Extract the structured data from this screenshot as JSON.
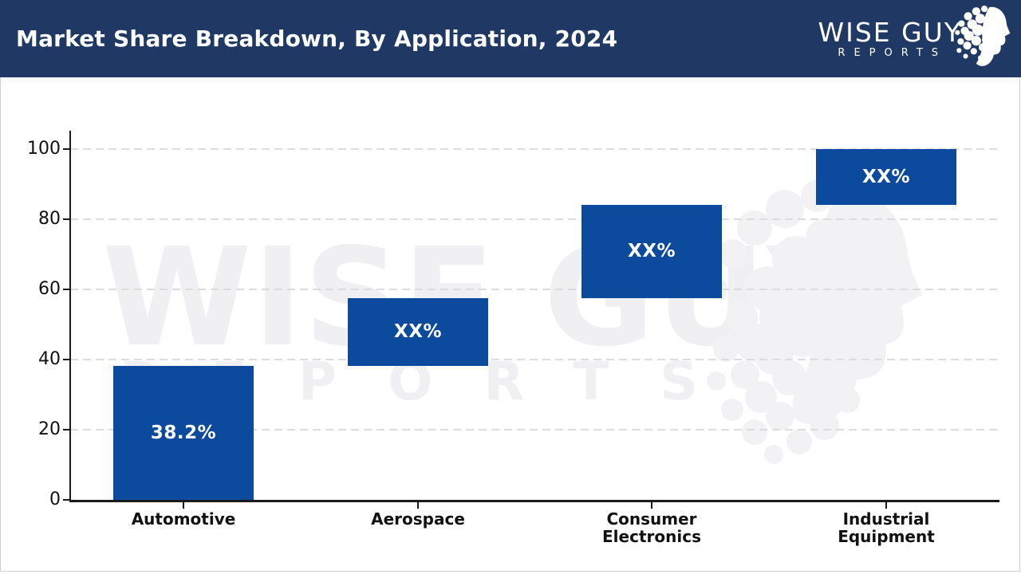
{
  "header": {
    "title": "Market Share Breakdown, By Application, 2024",
    "logo": {
      "line1": "WISE GUY",
      "line2": "REPORTS"
    },
    "background_color": "#1f3864"
  },
  "watermark": {
    "line1": "WISE GUY",
    "line2": "REPORTS"
  },
  "chart_data": {
    "type": "bar",
    "subtype": "floating-waterfall",
    "title": "Market Share Breakdown, By Application, 2024",
    "categories": [
      "Automotive",
      "Aerospace",
      "Consumer\nElectronics",
      "Industrial\nEquipment"
    ],
    "bars": [
      {
        "category": "Automotive",
        "start": 0,
        "end": 38.2,
        "label": "38.2%"
      },
      {
        "category": "Aerospace",
        "start": 38.2,
        "end": 57.5,
        "label": "XX%"
      },
      {
        "category": "Consumer Electronics",
        "start": 57.5,
        "end": 84.2,
        "label": "XX%"
      },
      {
        "category": "Industrial Equipment",
        "start": 84.2,
        "end": 100,
        "label": "XX%"
      }
    ],
    "yticks": [
      0,
      20,
      40,
      60,
      80,
      100
    ],
    "ylim": [
      0,
      100
    ],
    "xlabel": "",
    "ylabel": "",
    "legend": "none",
    "grid": "horizontal-dashed",
    "bar_color": "#0c4a9e",
    "bar_label_color": "#ffffff",
    "axis_color": "#1a1a1a"
  }
}
